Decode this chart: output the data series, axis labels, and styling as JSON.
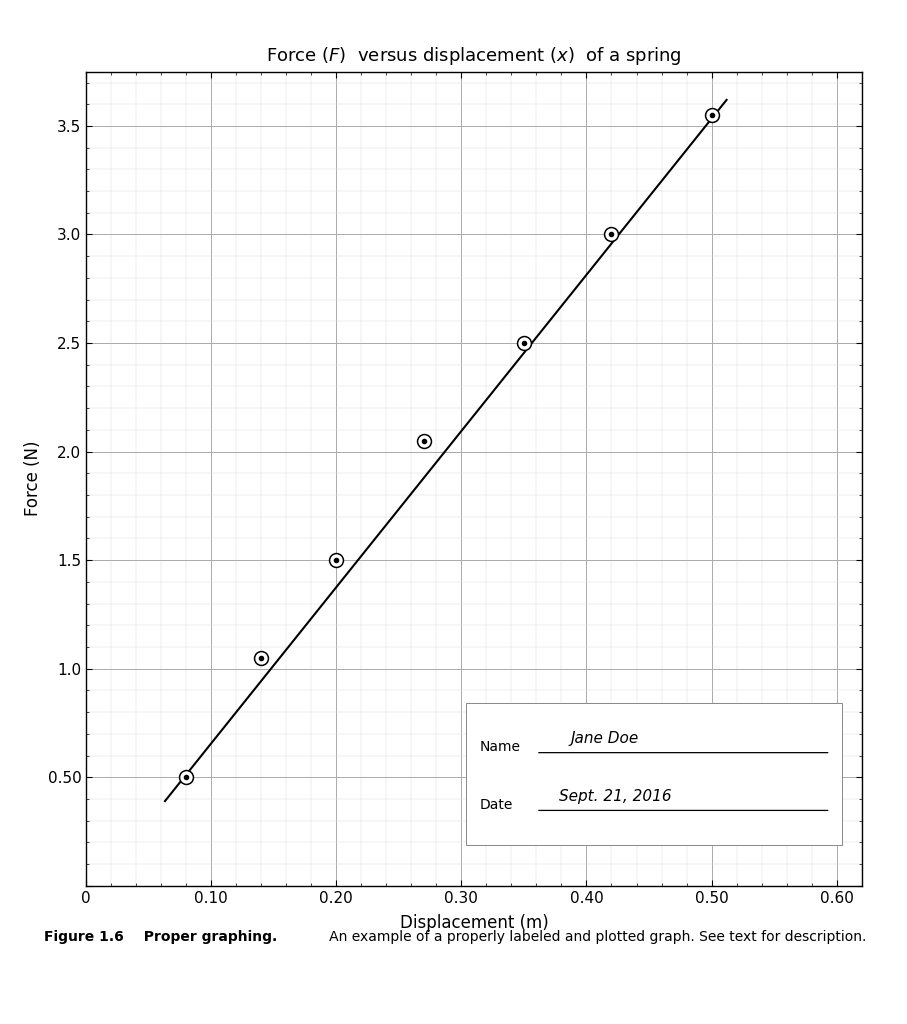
{
  "title": "Force ($\\mathit{F}$)  versus displacement ($\\mathit{x}$)  of a spring",
  "xlabel": "Displacement (m)",
  "ylabel": "Force (N)",
  "xlim": [
    0,
    0.62
  ],
  "ylim": [
    0,
    3.75
  ],
  "xticks": [
    0.0,
    0.1,
    0.2,
    0.3,
    0.4,
    0.5,
    0.6
  ],
  "xtick_labels": [
    "0",
    "0.10",
    "0.20",
    "0.30",
    "0.40",
    "0.50",
    "0.60"
  ],
  "ytick_vals": [
    0.0,
    0.5,
    1.0,
    1.5,
    2.0,
    2.5,
    3.0,
    3.5
  ],
  "ytick_labels": [
    "",
    "0.50",
    "1.0",
    "1.5",
    "2.0",
    "2.5",
    "3.0",
    "3.5"
  ],
  "data_x": [
    0.08,
    0.14,
    0.2,
    0.27,
    0.35,
    0.42,
    0.5
  ],
  "data_y": [
    0.5,
    1.05,
    1.5,
    2.05,
    2.5,
    3.0,
    3.55
  ],
  "line_x0": 0.063,
  "line_x1": 0.512,
  "line_y0": 0.39,
  "line_y1": 3.62,
  "name_text": "Jane Doe",
  "date_text": "Sept. 21, 2016",
  "fig_caption_bold1": "Figure 1.6",
  "fig_caption_bold2": "  Proper graphing.",
  "fig_caption_normal": "   An example of a properly labeled and plotted graph. See text for description.",
  "bg_color": "#ffffff",
  "major_grid_color": "#aaaaaa",
  "minor_grid_color": "#d8d8d8",
  "marker_outer_size": 10,
  "marker_inner_size": 3,
  "line_color": "black",
  "line_width": 1.5,
  "title_fontsize": 13,
  "label_fontsize": 12,
  "tick_fontsize": 11
}
